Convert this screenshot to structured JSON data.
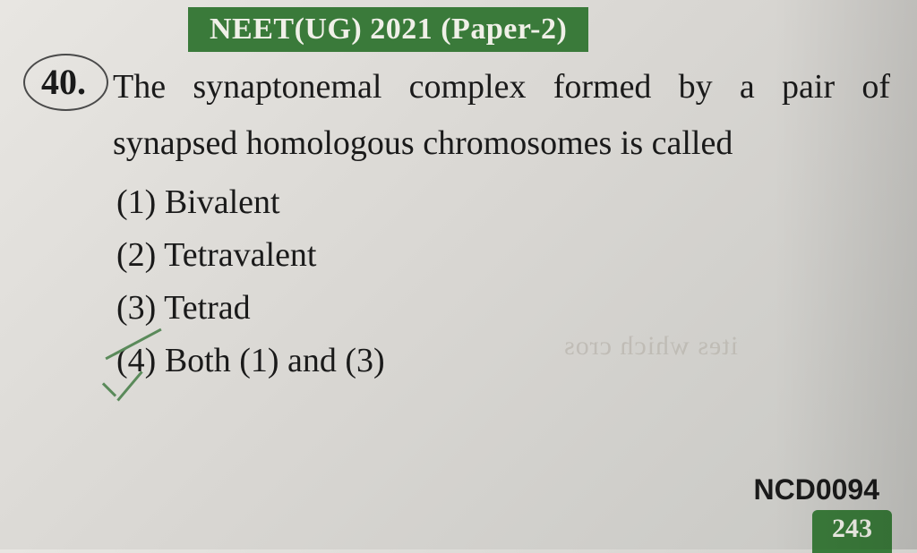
{
  "header": {
    "text": "NEET(UG) 2021 (Paper-2)",
    "bg_color": "#3a7a3a",
    "text_color": "#f0f0e8",
    "font_size": 34
  },
  "question": {
    "number": "40.",
    "circled": true,
    "text": "The synaptonemal complex formed by a pair of synapsed homologous chromosomes is called",
    "font_size": 38
  },
  "options": [
    {
      "label": "(1)",
      "text": "Bivalent",
      "marked": false
    },
    {
      "label": "(2)",
      "text": "Tetravalent",
      "marked": false
    },
    {
      "label": "(3)",
      "text": "Tetrad",
      "marked": false
    },
    {
      "label": "(4)",
      "text": "Both (1) and (3)",
      "marked": true
    }
  ],
  "ghost_text": "ites which cros",
  "code": "NCD0094",
  "page_number": "243",
  "page_number_box": {
    "bg_color": "#3a7a3a",
    "text_color": "#f0f0e8"
  },
  "colors": {
    "page_bg": "#e8e6e2",
    "text": "#1a1a1a",
    "mark": "#5a8a5a"
  }
}
